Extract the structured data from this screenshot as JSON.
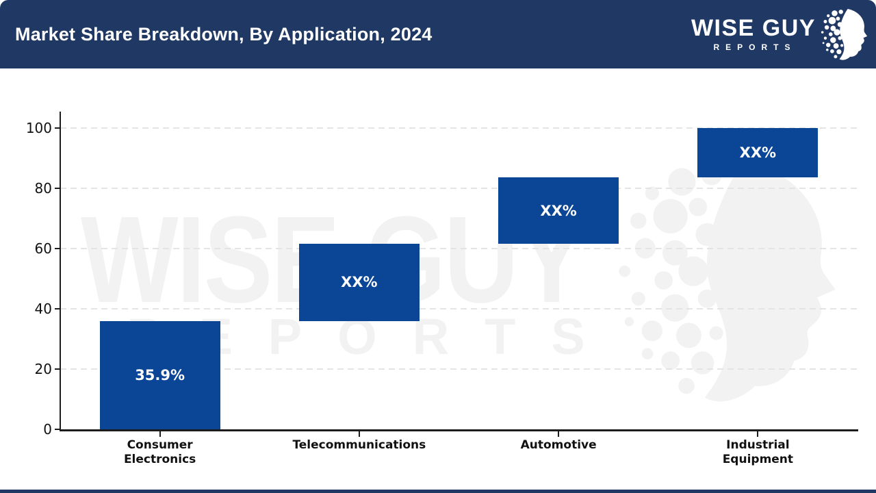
{
  "header": {
    "title": "Market Share Breakdown, By Application, 2024"
  },
  "logo": {
    "line1": "WISE GUY",
    "line2": "REPORTS",
    "icon": "dotted-head-profile"
  },
  "watermark": {
    "line1": "WISE GUY",
    "line2": "REPORTS",
    "icon": "dotted-head-profile"
  },
  "colors": {
    "header_navy": "#1f3864",
    "bar_blue": "#0a4596",
    "gridline": "#e4e4e4",
    "axis": "#1c1c1c",
    "watermark": "#f2f2f2",
    "bar_label": "#ffffff",
    "tick_label": "#111111"
  },
  "chart_data": {
    "type": "bar",
    "subtype": "waterfall",
    "title": "Market Share Breakdown, By Application, 2024",
    "categories": [
      "Consumer\nElectronics",
      "Telecommunications",
      "Automotive",
      "Industrial\nEquipment"
    ],
    "segments": [
      {
        "category": "Consumer Electronics",
        "start": 0,
        "end": 35.9,
        "value": 35.9,
        "label": "35.9%"
      },
      {
        "category": "Telecommunications",
        "start": 35.9,
        "end": 61.6,
        "value": 25.7,
        "label": "XX%"
      },
      {
        "category": "Automotive",
        "start": 61.6,
        "end": 83.6,
        "value": 22.0,
        "label": "XX%"
      },
      {
        "category": "Industrial Equipment",
        "start": 83.6,
        "end": 100,
        "value": 16.4,
        "label": "XX%"
      }
    ],
    "yticks": [
      0,
      20,
      40,
      60,
      80,
      100
    ],
    "ylim": [
      0,
      105
    ],
    "xlabel": "",
    "ylabel": "",
    "grid": "horizontal-dashed",
    "legend": "none",
    "bar_color": "#0a4596"
  }
}
